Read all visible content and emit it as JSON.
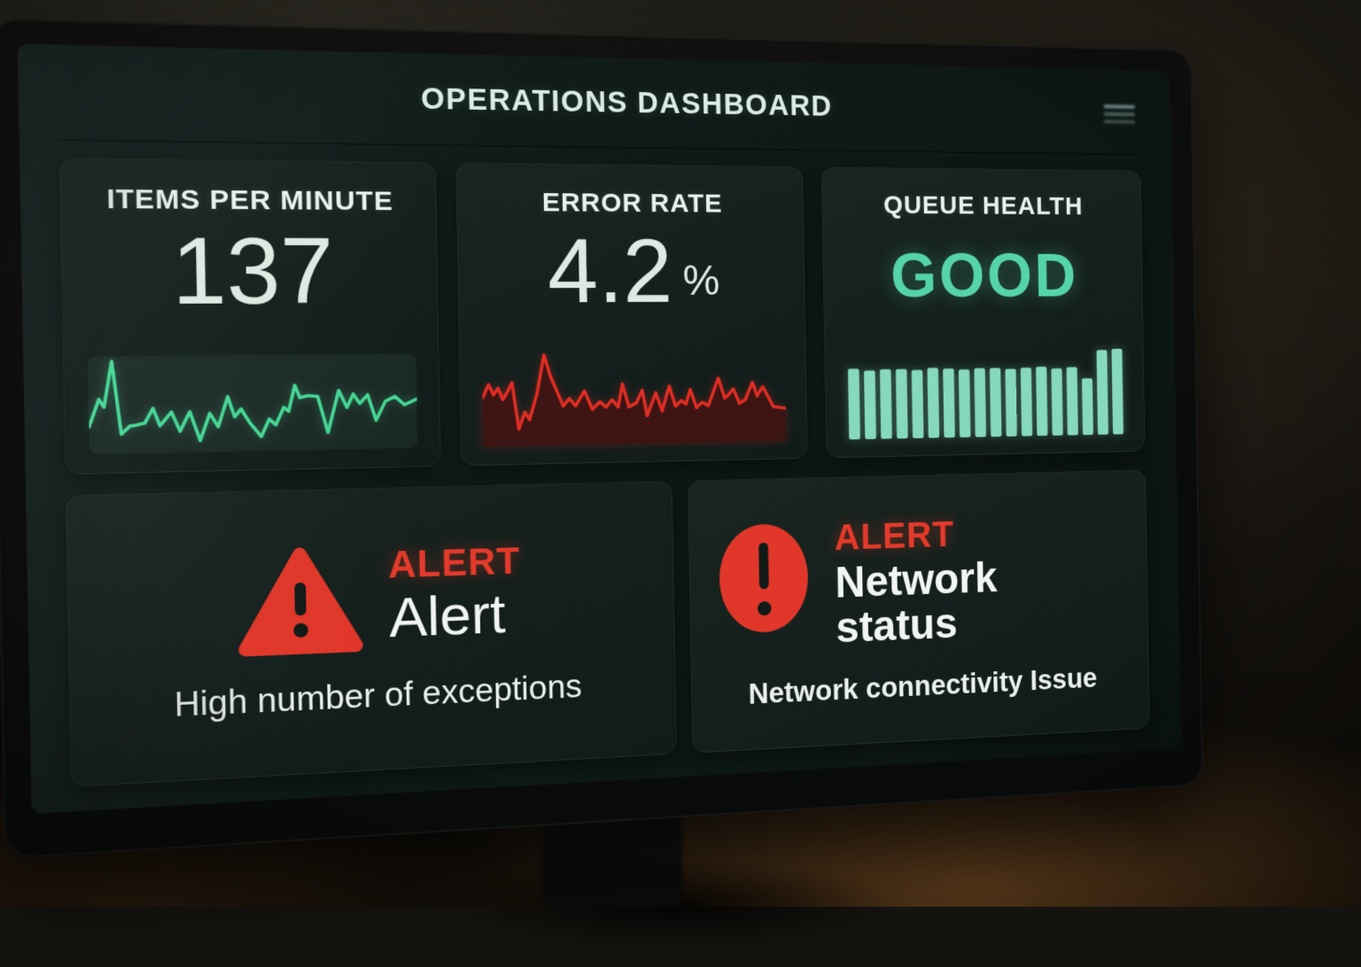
{
  "header": {
    "title": "OPERATIONS DASHBOARD",
    "menu_icon": "hamburger-menu-icon"
  },
  "metric_cards": [
    {
      "id": "items_per_minute",
      "label": "ITEMS PER MINUTE",
      "value": "137",
      "unit": ""
    },
    {
      "id": "error_rate",
      "label": "ERROR RATE",
      "value": "4.2",
      "unit": "%"
    },
    {
      "id": "queue_health",
      "label": "QUEUE HEALTH",
      "value": "GOOD",
      "unit": ""
    }
  ],
  "alert_cards": [
    {
      "icon": "warning-triangle-icon",
      "tag": "ALERT",
      "title": "Alert",
      "message": "High number of exceptions"
    },
    {
      "icon": "alert-circle-icon",
      "tag": "ALERT",
      "title": "Network status",
      "message": "Network connectivity Issue"
    }
  ],
  "colors": {
    "screen_bg": "#0f1a18",
    "card_bg": "#141f1d",
    "value_white": "#dde9e2",
    "label_white": "#e9f1ec",
    "good_teal": "#55d4a8",
    "line_green": "#45d694",
    "line_red": "#e02d24",
    "red_fill": "#3c1413",
    "bars_teal": "#86d9bd",
    "alert_red": "#e33a2b"
  },
  "chart_data": [
    {
      "id": "items_per_minute",
      "type": "line",
      "title": "ITEMS PER MINUTE",
      "color": "#45d694",
      "fill": "none",
      "ylim": [
        0,
        100
      ],
      "points": [
        [
          0,
          28
        ],
        [
          3,
          56
        ],
        [
          4.5,
          48
        ],
        [
          7,
          95
        ],
        [
          9.5,
          20
        ],
        [
          12,
          28
        ],
        [
          14,
          29
        ],
        [
          16.5,
          31
        ],
        [
          19,
          46
        ],
        [
          21,
          28
        ],
        [
          24.5,
          42
        ],
        [
          27,
          22
        ],
        [
          30,
          42
        ],
        [
          33,
          12
        ],
        [
          36,
          40
        ],
        [
          38.5,
          26
        ],
        [
          41.5,
          57
        ],
        [
          43.5,
          36
        ],
        [
          45.5,
          44
        ],
        [
          48,
          30
        ],
        [
          51.5,
          15
        ],
        [
          54,
          33
        ],
        [
          56,
          27
        ],
        [
          58.5,
          45
        ],
        [
          60,
          41
        ],
        [
          62,
          68
        ],
        [
          63.5,
          55
        ],
        [
          66,
          57
        ],
        [
          69,
          56
        ],
        [
          72,
          18
        ],
        [
          75.5,
          62
        ],
        [
          78,
          44
        ],
        [
          80,
          58
        ],
        [
          82,
          48
        ],
        [
          84.5,
          57
        ],
        [
          87,
          30
        ],
        [
          90,
          50
        ],
        [
          93,
          55
        ],
        [
          96,
          46
        ],
        [
          100,
          52
        ]
      ]
    },
    {
      "id": "error_rate",
      "type": "line",
      "title": "ERROR RATE",
      "color": "#e02d24",
      "fill": "#3c1413",
      "ylim": [
        0,
        100
      ],
      "points": [
        [
          0,
          52
        ],
        [
          2,
          66
        ],
        [
          3.5,
          55
        ],
        [
          5,
          62
        ],
        [
          6.5,
          50
        ],
        [
          8,
          58
        ],
        [
          9.5,
          68
        ],
        [
          11.5,
          18
        ],
        [
          13.5,
          36
        ],
        [
          15,
          28
        ],
        [
          17.5,
          55
        ],
        [
          20,
          97
        ],
        [
          22,
          74
        ],
        [
          24,
          58
        ],
        [
          26,
          42
        ],
        [
          28,
          50
        ],
        [
          30,
          42
        ],
        [
          33,
          58
        ],
        [
          35.5,
          38
        ],
        [
          38,
          46
        ],
        [
          40,
          40
        ],
        [
          42,
          48
        ],
        [
          44,
          40
        ],
        [
          45.5,
          65
        ],
        [
          47.5,
          40
        ],
        [
          50,
          44
        ],
        [
          52,
          58
        ],
        [
          53.5,
          30
        ],
        [
          56.5,
          55
        ],
        [
          58.5,
          35
        ],
        [
          61,
          62
        ],
        [
          63,
          40
        ],
        [
          65,
          46
        ],
        [
          66.5,
          42
        ],
        [
          68,
          58
        ],
        [
          70,
          38
        ],
        [
          72,
          44
        ],
        [
          74,
          40
        ],
        [
          77.5,
          70
        ],
        [
          79.5,
          48
        ],
        [
          81,
          52
        ],
        [
          82.5,
          58
        ],
        [
          84.5,
          42
        ],
        [
          86.5,
          46
        ],
        [
          89,
          65
        ],
        [
          90.5,
          50
        ],
        [
          92.5,
          60
        ],
        [
          96,
          38
        ],
        [
          100,
          36
        ]
      ]
    },
    {
      "id": "queue_health",
      "type": "bar",
      "title": "QUEUE HEALTH",
      "color": "#86d9bd",
      "ylim": [
        0,
        100
      ],
      "values": [
        73,
        71,
        72,
        72,
        71,
        73,
        72,
        71,
        72,
        72,
        71,
        72,
        73,
        71,
        72,
        60,
        90,
        91
      ]
    }
  ]
}
